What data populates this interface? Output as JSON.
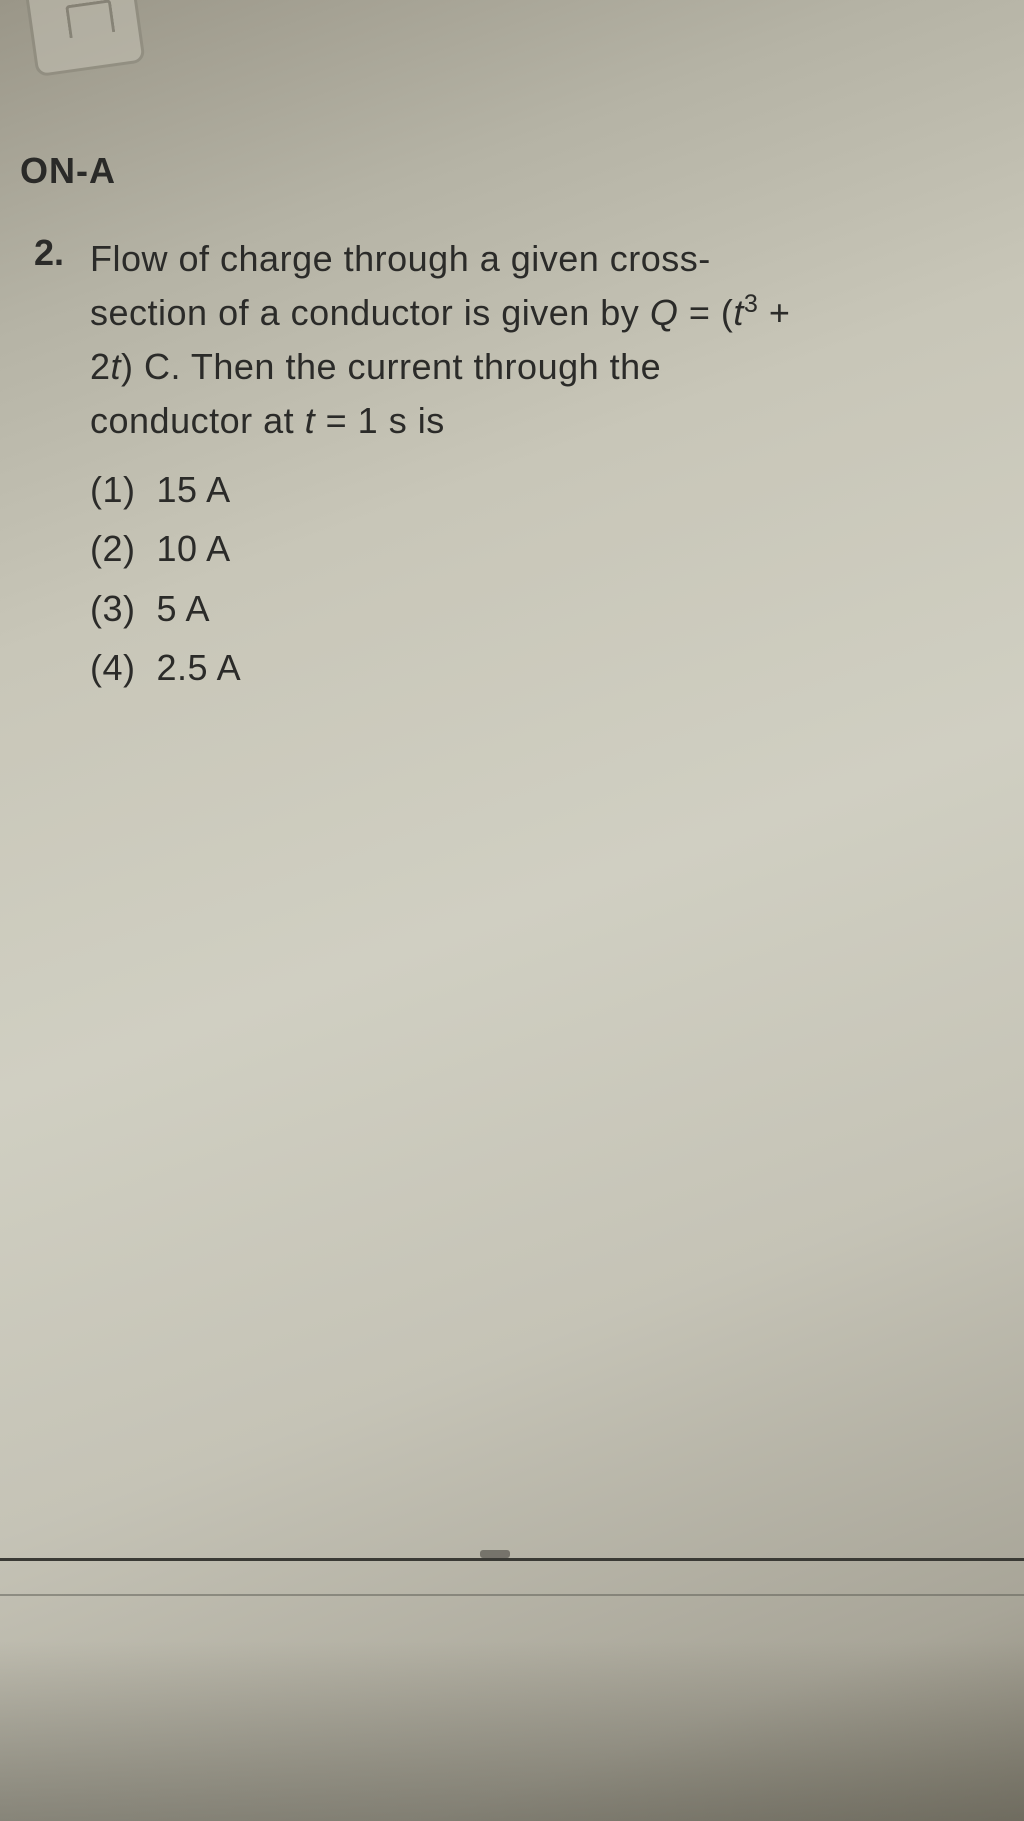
{
  "page": {
    "section_label": "ON-A",
    "question_number": "2.",
    "question_line1": "Flow of charge through a given cross-",
    "question_line2_before_eq": "section of a conductor is given by ",
    "question_eq_lhs": "Q",
    "question_eq_rhs_open": " = (",
    "question_eq_var": "t",
    "question_eq_exp": "3",
    "question_eq_plus": " +",
    "question_line3_coeff": "2",
    "question_line3_var": "t",
    "question_line3_close": ") C. Then the current through the",
    "question_line4_before": "conductor at ",
    "question_line4_var": "t",
    "question_line4_after": " = 1 s is",
    "options": [
      {
        "num": "(1)",
        "text": "15 A"
      },
      {
        "num": "(2)",
        "text": "10 A"
      },
      {
        "num": "(3)",
        "text": "5 A"
      },
      {
        "num": "(4)",
        "text": "2.5 A"
      }
    ],
    "colors": {
      "text": "#2b2b29",
      "background_main": "#c8c6b8"
    }
  }
}
